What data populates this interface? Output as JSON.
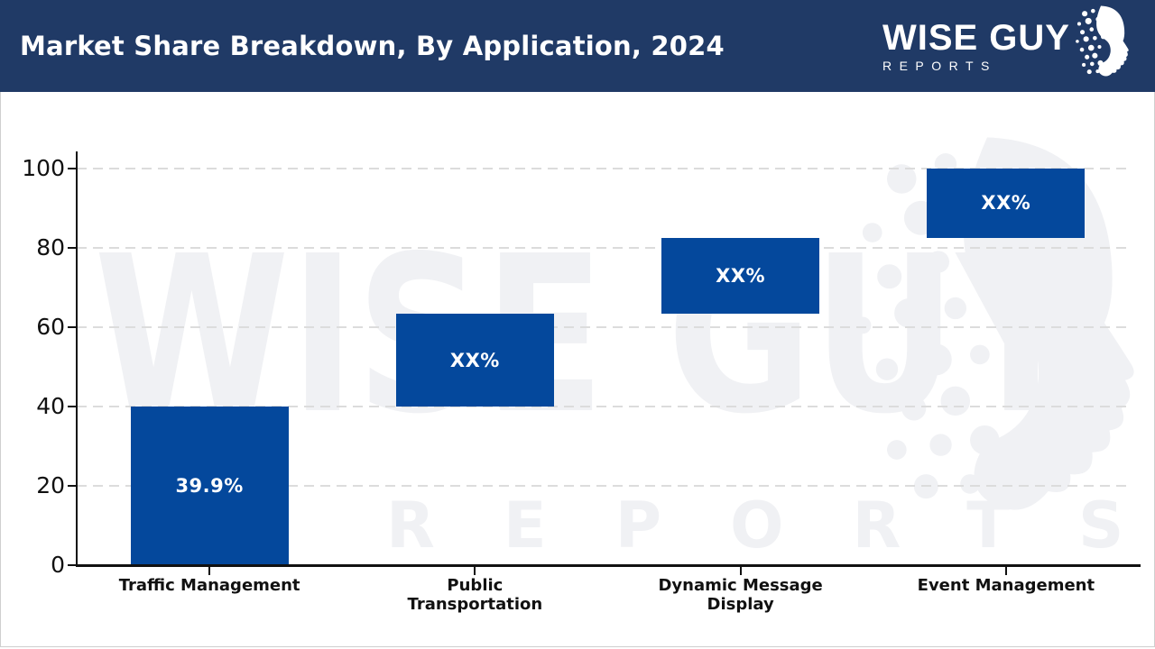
{
  "header": {
    "title": "Market Share Breakdown, By Application, 2024",
    "brand": {
      "wordmark": "WISE GUY",
      "reports": "REPORTS"
    }
  },
  "watermark": {
    "wordmark": "WISE GUY",
    "reports": "REPORTS"
  },
  "chart_data": {
    "type": "bar",
    "variant": "floating-segment-waterfall",
    "title": "Market Share Breakdown, By Application, 2024",
    "categories": [
      "Traffic Management",
      "Public Transportation",
      "Dynamic Message Display",
      "Event Management"
    ],
    "categories_wrapped": [
      [
        "Traffic Management"
      ],
      [
        "Public",
        "Transportation"
      ],
      [
        "Dynamic Message",
        "Display"
      ],
      [
        "Event Management"
      ]
    ],
    "segments": [
      {
        "category": "Traffic Management",
        "start": 0,
        "end": 39.9,
        "label": "39.9%"
      },
      {
        "category": "Public Transportation",
        "start": 39.9,
        "end": 63.3,
        "label": "XX%"
      },
      {
        "category": "Dynamic Message Display",
        "start": 63.3,
        "end": 82.6,
        "label": "XX%"
      },
      {
        "category": "Event Management",
        "start": 82.6,
        "end": 100,
        "label": "XX%"
      }
    ],
    "xlabel": "",
    "ylabel": "",
    "ylim": [
      0,
      100
    ],
    "yticks": [
      0,
      20,
      40,
      60,
      80,
      100
    ],
    "grid": "horizontal dashed",
    "legend": "none",
    "colors": {
      "bar": "#04489c",
      "bar_label": "#ffffff",
      "grid": "#dcdcdc",
      "axis": "#111111",
      "header_bg": "#203a66",
      "header_text": "#ffffff",
      "watermark": "#f0f1f4"
    }
  }
}
